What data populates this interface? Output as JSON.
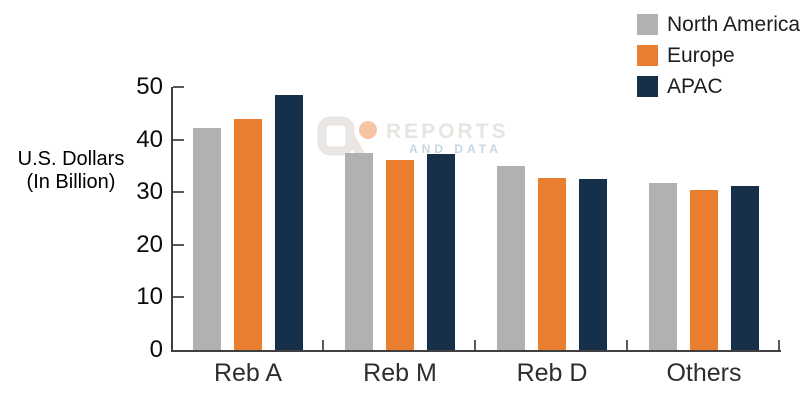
{
  "chart_data": {
    "type": "bar",
    "title": "",
    "categories": [
      "Reb A",
      "Reb M",
      "Reb D",
      "Others"
    ],
    "series": [
      {
        "name": "North America",
        "color": "#b1b1b1",
        "values": [
          42.2,
          37.5,
          35.0,
          31.7
        ]
      },
      {
        "name": "Europe",
        "color": "#e97f2e",
        "values": [
          44.0,
          36.2,
          32.7,
          30.5
        ]
      },
      {
        "name": "APAC",
        "color": "#17304a",
        "values": [
          48.5,
          37.2,
          32.5,
          31.2
        ]
      }
    ],
    "xlabel": "",
    "ylabel": "U.S. Dollars (In Billion)",
    "ylabel_lines": [
      "U.S. Dollars",
      "(In Billion)"
    ],
    "ylim": [
      0,
      50
    ],
    "yticks": [
      0,
      10,
      20,
      30,
      40,
      50
    ],
    "grid": false,
    "legend_position": "top-right",
    "tick_direction": "in"
  },
  "watermark": {
    "line1": "REPORTS",
    "line2": "AND DATA"
  },
  "colors": {
    "axis": "#3f3f3f",
    "tick": "#5a5a5a",
    "tick_label": "#0b0b0b",
    "category_label": "#2e2e2e",
    "legend_label": "#1d1d1f"
  }
}
